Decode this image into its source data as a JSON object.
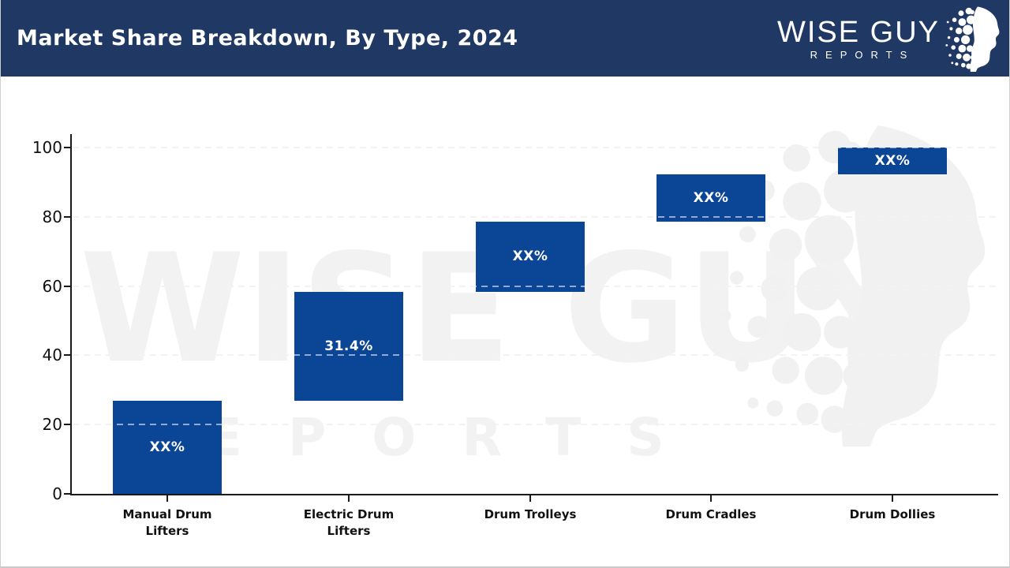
{
  "header": {
    "title": "Market Share Breakdown, By Type, 2024",
    "logo": {
      "line1": "WISE GUY",
      "line2": "REPORTS"
    }
  },
  "watermark": {
    "line1": "WISE GUY",
    "line2": "REPORTS"
  },
  "colors": {
    "header_bg": "#1f3864",
    "bar": "#0b4596",
    "axis": "#1a1a1a",
    "grid": "#e4e4e4",
    "bar_label_text": "#ffffff",
    "watermark": "#f2f2f3"
  },
  "chart_data": {
    "type": "bar",
    "subtype": "waterfall",
    "title": "Market Share Breakdown, By Type, 2024",
    "categories": [
      "Manual Drum Lifters",
      "Electric Drum Lifters",
      "Drum Trolleys",
      "Drum Cradles",
      "Drum Dollies"
    ],
    "bars": [
      {
        "category": "Manual Drum Lifters",
        "start": 0,
        "end": 26.9,
        "label": "XX%"
      },
      {
        "category": "Electric Drum Lifters",
        "start": 26.9,
        "end": 58.3,
        "label": "31.4%",
        "value": 31.4
      },
      {
        "category": "Drum Trolleys",
        "start": 58.3,
        "end": 78.6,
        "label": "XX%"
      },
      {
        "category": "Drum Cradles",
        "start": 78.6,
        "end": 92.3,
        "label": "XX%"
      },
      {
        "category": "Drum Dollies",
        "start": 92.3,
        "end": 100,
        "label": "XX%"
      }
    ],
    "yticks": [
      0,
      20,
      40,
      60,
      80,
      100
    ],
    "ylim": [
      0,
      105
    ],
    "xlabel": "",
    "ylabel": "",
    "grid": "horizontal-dashed",
    "legend": "none",
    "bar_color": "#0b4596"
  }
}
